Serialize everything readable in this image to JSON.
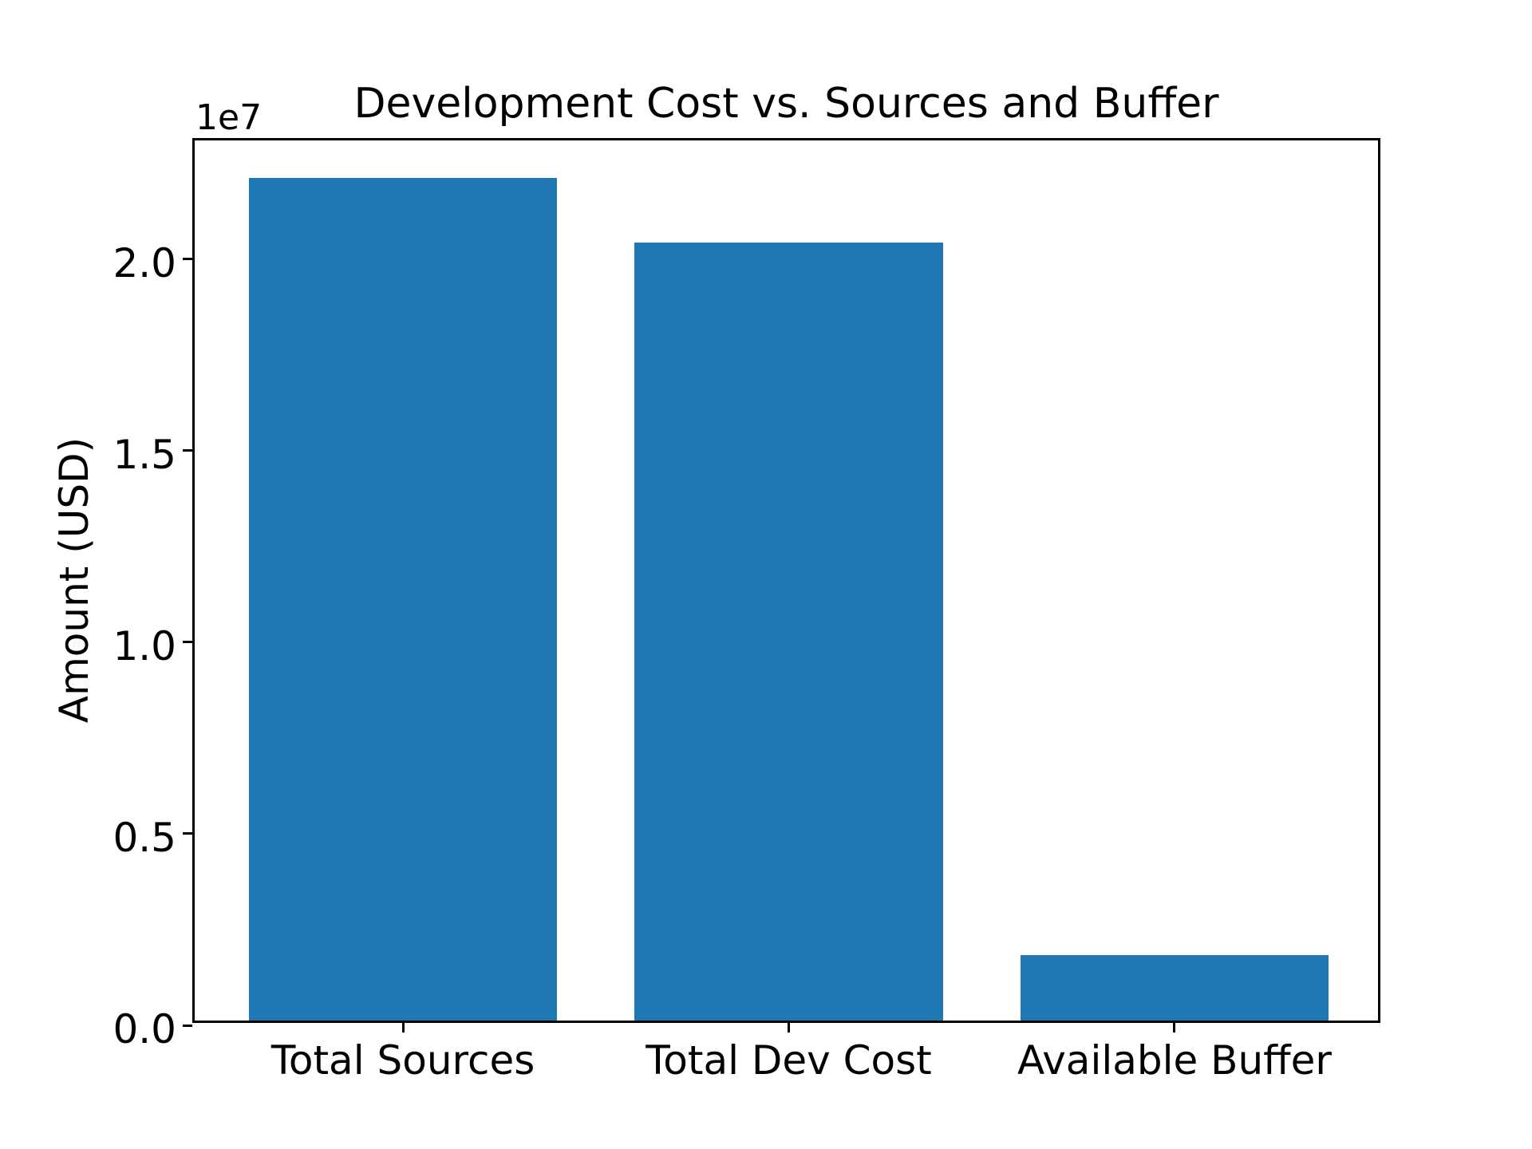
{
  "chart_data": {
    "type": "bar",
    "title": "Development Cost vs. Sources and Buffer",
    "xlabel": "",
    "ylabel": "Amount (USD)",
    "offset_text": "1e7",
    "categories": [
      "Total Sources",
      "Total Dev Cost",
      "Available Buffer"
    ],
    "values": [
      22000000,
      20300000,
      1700000
    ],
    "ylim": [
      0,
      23100000
    ],
    "yticks": [
      0,
      5000000,
      10000000,
      15000000,
      20000000
    ],
    "ytick_labels": [
      "0.0",
      "0.5",
      "1.0",
      "1.5",
      "2.0"
    ],
    "bar_color": "#1f77b4",
    "axis_color": "#000000",
    "grid": false,
    "legend_position": "none"
  }
}
